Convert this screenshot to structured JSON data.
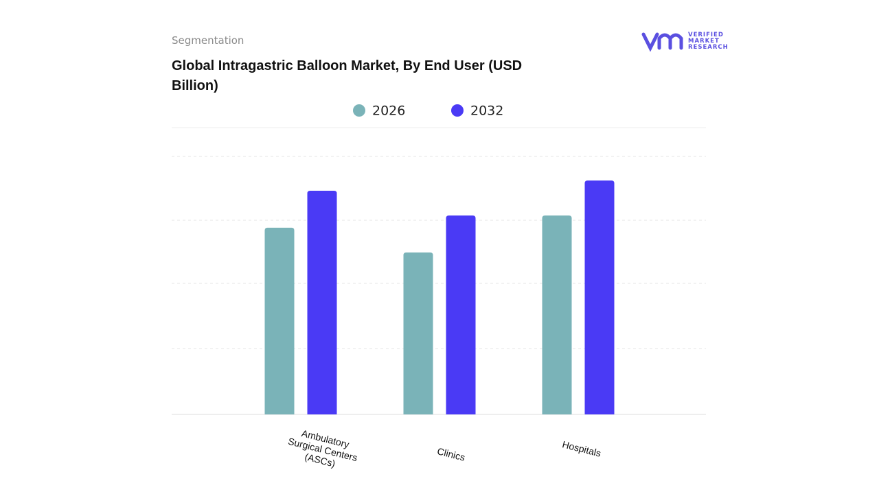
{
  "header": {
    "section": "Segmentation",
    "brand": [
      "VERIFIED",
      "MARKET",
      "RESEARCH"
    ]
  },
  "chart_data": {
    "type": "bar",
    "title": "Global Intragastric Balloon Market, By End User (USD Billion)",
    "categories": [
      "Ambulatory Surgical Centers (ASCs)",
      "Clinics",
      "Hospitals"
    ],
    "series": [
      {
        "name": "2026",
        "color": "#7ab3b8",
        "values": [
          2.93,
          2.54,
          3.12
        ]
      },
      {
        "name": "2032",
        "color": "#4a3af5",
        "values": [
          3.51,
          3.12,
          3.67
        ]
      }
    ],
    "ylim": [
      0,
      4.5
    ]
  }
}
